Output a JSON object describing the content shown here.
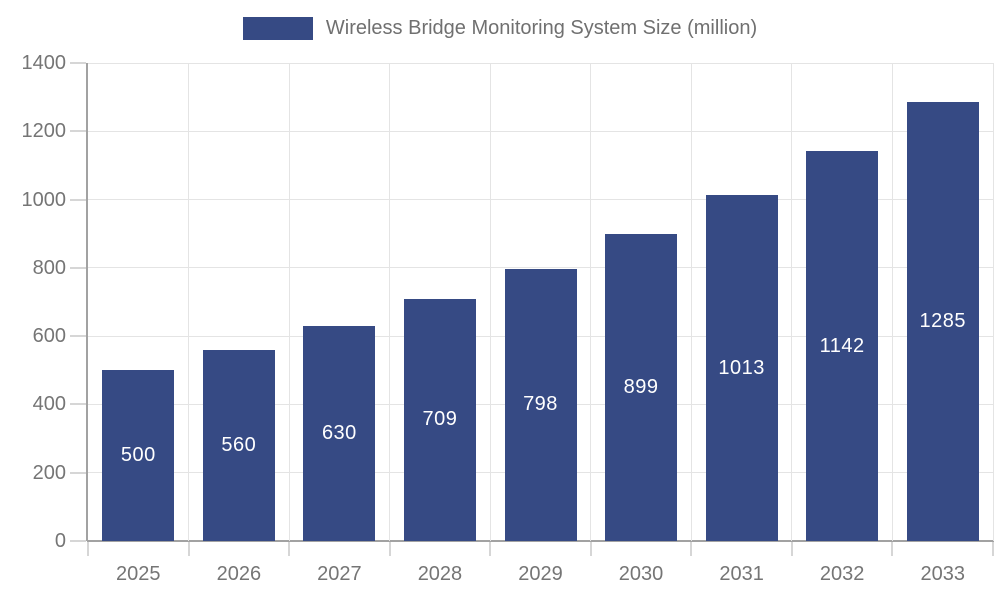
{
  "chart_data": {
    "type": "bar",
    "title": "Wireless Bridge Monitoring System Size (million)",
    "categories": [
      "2025",
      "2026",
      "2027",
      "2028",
      "2029",
      "2030",
      "2031",
      "2032",
      "2033"
    ],
    "series": [
      {
        "name": "Wireless Bridge Monitoring System Size (million)",
        "values": [
          500,
          560,
          630,
          709,
          798,
          899,
          1013,
          1142,
          1285
        ]
      }
    ],
    "xlabel": "",
    "ylabel": "",
    "ylim": [
      0,
      1400
    ],
    "ytick_step": 200,
    "grid": true,
    "legend_position": "top",
    "value_labels": "inside-center",
    "colors": {
      "bar": "#364a84",
      "grid": "#e4e4e4",
      "axis": "#a2a2a2",
      "tick": "#d6d6d6",
      "tick_label": "#757575",
      "title": "#707070",
      "value_label": "#ffffff",
      "background": "#ffffff"
    }
  }
}
